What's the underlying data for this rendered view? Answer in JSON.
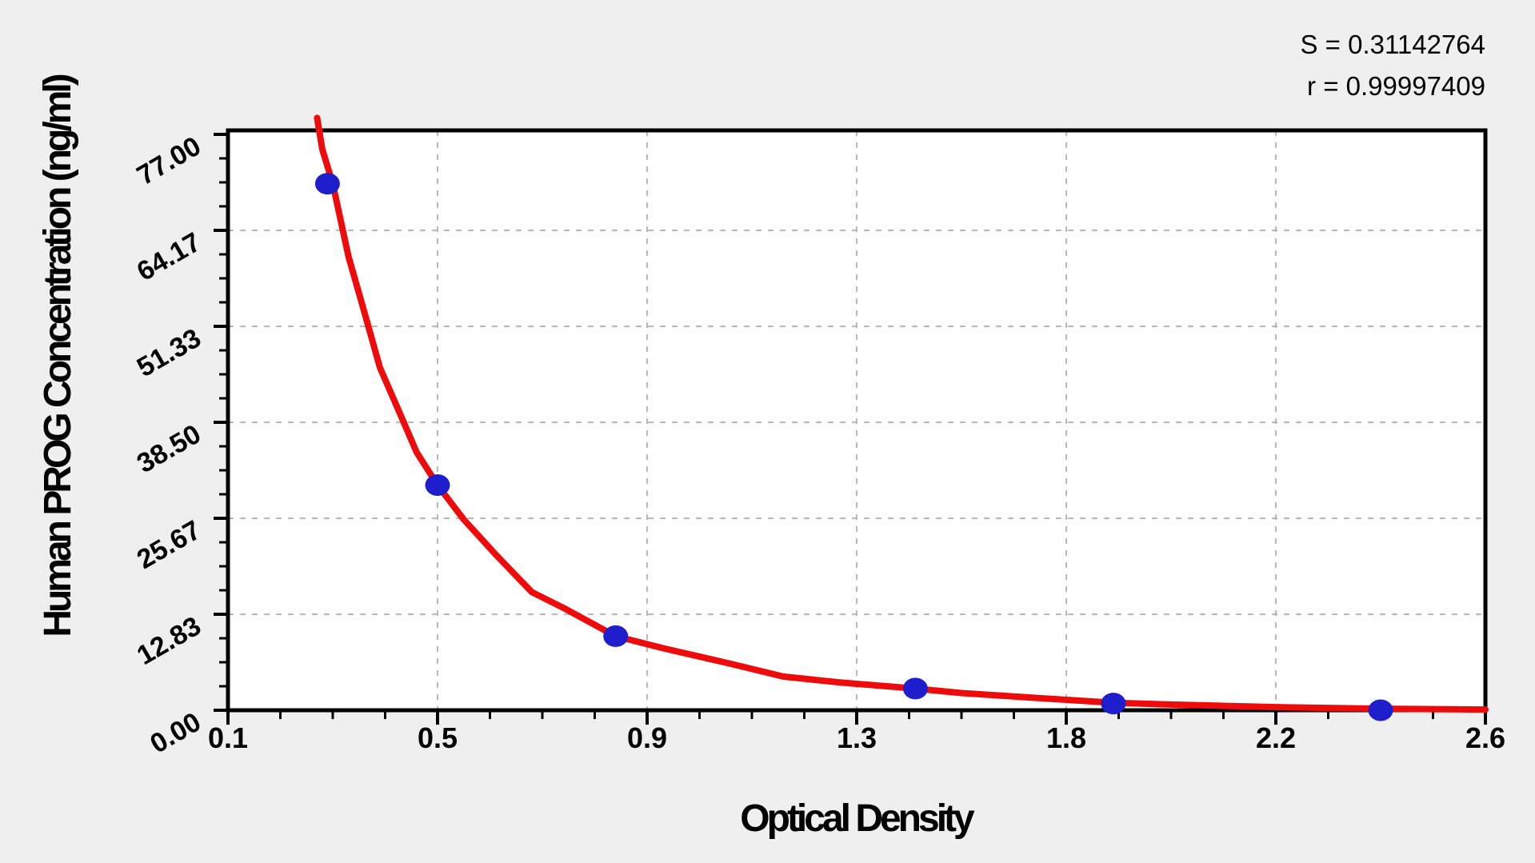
{
  "stats": {
    "s_line": "S = 0.31142764",
    "r_line": "r = 0.99997409"
  },
  "chart_data": {
    "type": "scatter",
    "title": "",
    "xlabel": "Optical Density",
    "ylabel": "Human PROG Concentration (ng/ml)",
    "legend": "none",
    "x_axis": {
      "tick_labels": [
        "0.1",
        "0.5",
        "0.9",
        "1.3",
        "1.8",
        "2.2",
        "2.6"
      ],
      "tick_values": [
        0.1,
        0.5,
        0.9,
        1.3,
        1.8,
        2.2,
        2.6
      ],
      "minor_ticks_per_interval": 3
    },
    "y_axis": {
      "tick_labels": [
        "0.00",
        "12.83",
        "25.67",
        "38.50",
        "51.33",
        "64.17",
        "77.00"
      ],
      "tick_values": [
        0,
        12.83,
        25.67,
        38.5,
        51.33,
        64.17,
        77.0
      ],
      "range": [
        0,
        77
      ],
      "minor_ticks_per_interval": 3
    },
    "grid": {
      "style": "dashed",
      "color": "#b8b8b8"
    },
    "fit": {
      "S": 0.31142764,
      "r": 0.99997409,
      "curve_color": "#ed0b0b"
    },
    "points": {
      "color": "#1e1ecd",
      "data": [
        {
          "od": 0.29,
          "conc": 70.4
        },
        {
          "od": 0.5,
          "conc": 30.1
        },
        {
          "od": 0.84,
          "conc": 9.9
        },
        {
          "od": 1.44,
          "conc": 2.9
        },
        {
          "od": 1.89,
          "conc": 0.9
        },
        {
          "od": 2.4,
          "conc": 0.0
        }
      ]
    },
    "curve_points": [
      [
        0.27,
        79.2
      ],
      [
        0.28,
        75.0
      ],
      [
        0.3,
        70.4
      ],
      [
        0.33,
        60.7
      ],
      [
        0.36,
        53.3
      ],
      [
        0.39,
        45.8
      ],
      [
        0.43,
        39.4
      ],
      [
        0.46,
        34.5
      ],
      [
        0.5,
        30.1
      ],
      [
        0.55,
        25.5
      ],
      [
        0.61,
        20.9
      ],
      [
        0.68,
        15.8
      ],
      [
        0.74,
        13.7
      ],
      [
        0.84,
        9.9
      ],
      [
        0.93,
        8.3
      ],
      [
        1.06,
        6.2
      ],
      [
        1.16,
        4.5
      ],
      [
        1.27,
        3.7
      ],
      [
        1.44,
        2.9
      ],
      [
        1.55,
        2.3
      ],
      [
        1.74,
        1.6
      ],
      [
        1.89,
        1.0
      ],
      [
        1.98,
        0.8
      ],
      [
        2.21,
        0.4
      ],
      [
        2.4,
        0.2
      ],
      [
        2.6,
        0.1
      ]
    ]
  },
  "colors": {
    "background": "#efefef",
    "plot_background": "#ffffff",
    "axis": "#000000"
  }
}
